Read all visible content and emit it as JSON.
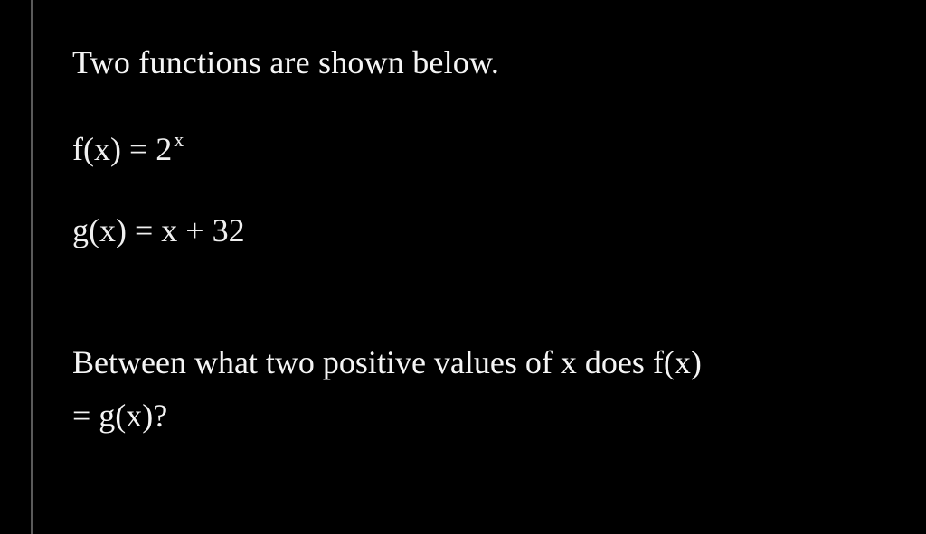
{
  "colors": {
    "background": "#000000",
    "text": "#f5f5f5",
    "divider": "#5a5a5a"
  },
  "typography": {
    "font_family": "Georgia, 'Times New Roman', serif",
    "font_size_pt": 27,
    "font_weight": 300,
    "line_height": 1.65
  },
  "intro": "Two functions are shown below.",
  "equations": {
    "f": {
      "lhs": "f(x)",
      "eq": " = ",
      "base": "2",
      "exp": "x"
    },
    "g": {
      "lhs": "g(x)",
      "eq": " = ",
      "rhs": "x + 32"
    }
  },
  "question": {
    "line1": "Between what two positive values of x does f(x)",
    "line2": "= g(x)?"
  }
}
